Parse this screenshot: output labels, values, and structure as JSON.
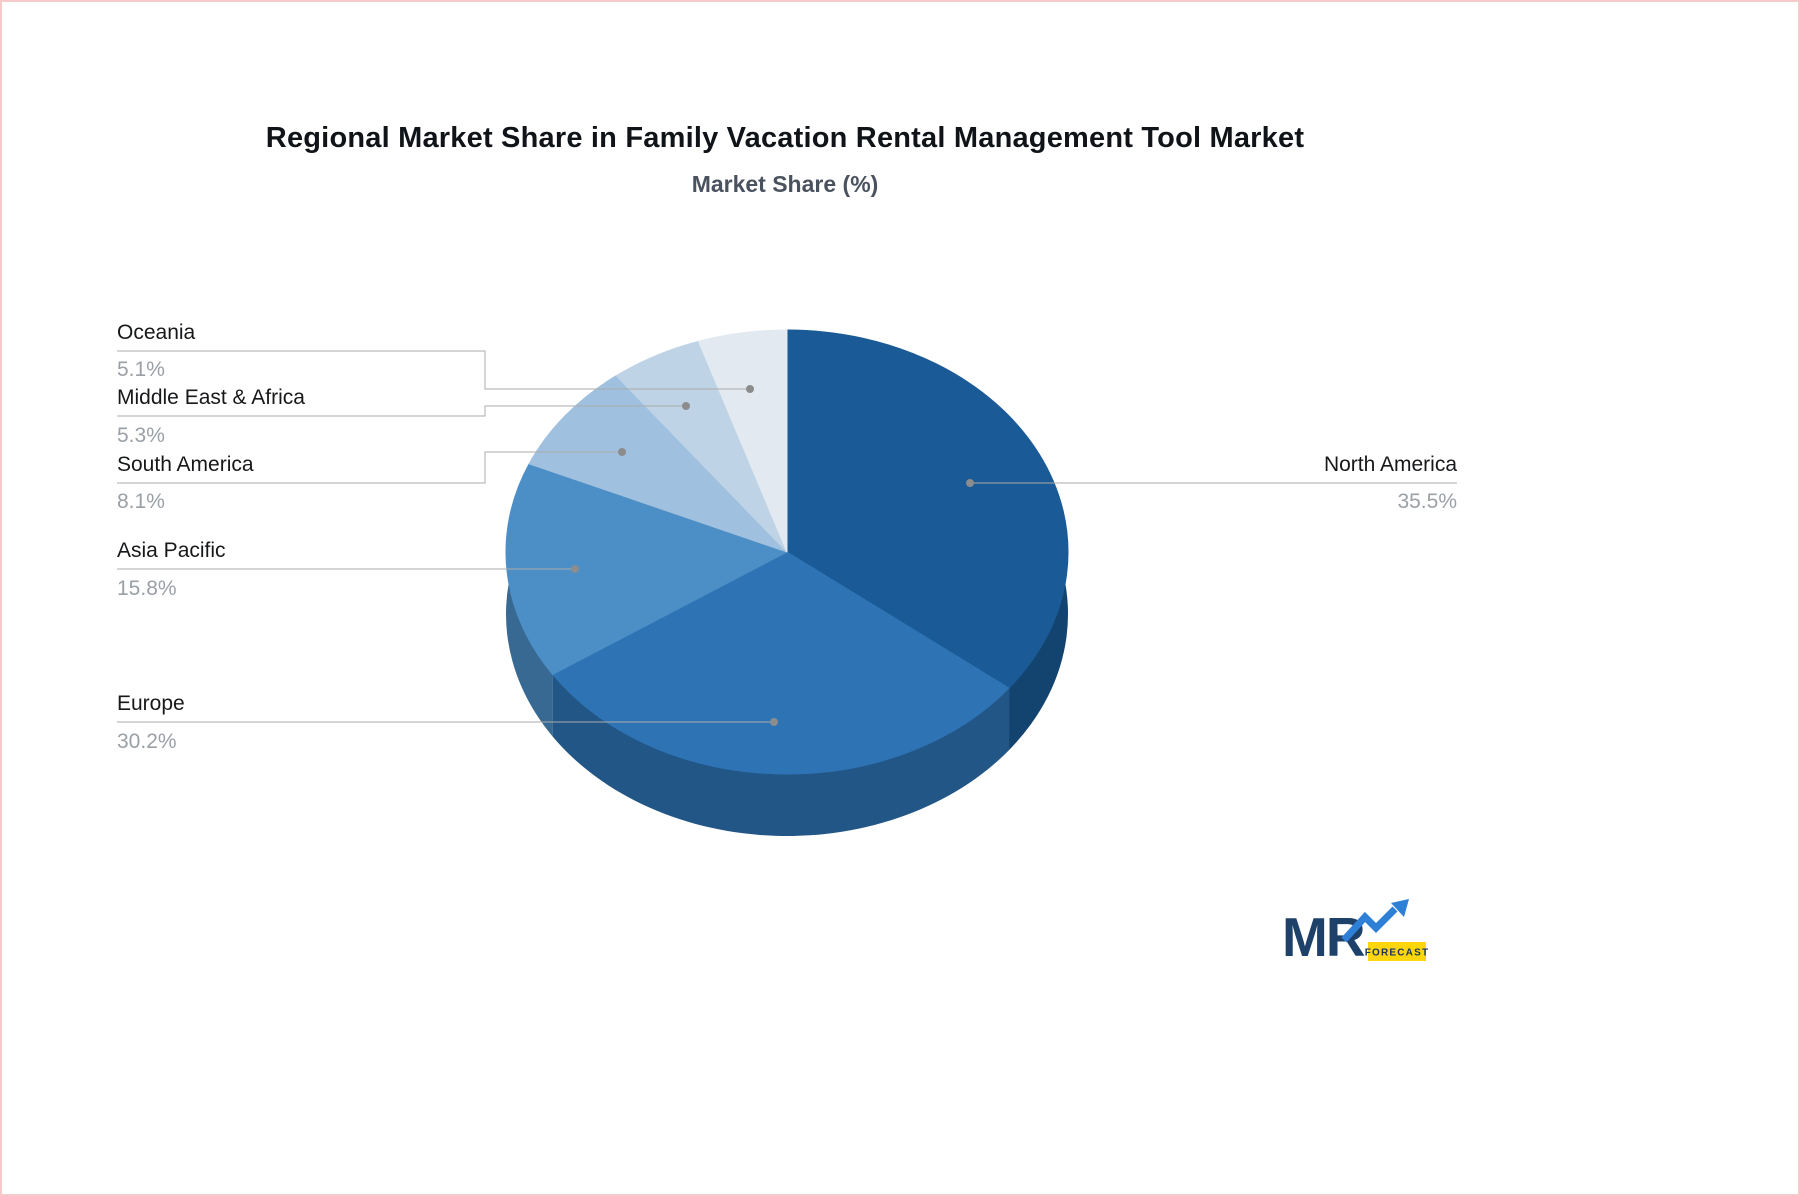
{
  "header": {
    "title": "Regional Market Share in Family Vacation Rental Management Tool Market",
    "subtitle": "Market Share (%)"
  },
  "chart_data": {
    "type": "pie",
    "title": "Regional Market Share in Family Vacation Rental Management Tool Market",
    "subtitle": "Market Share (%)",
    "unit": "%",
    "start_angle_deg": 0,
    "direction": "clockwise",
    "style": "3d-pie",
    "leader_color": "#ababab",
    "dot_color": "#8c8c8c",
    "series": [
      {
        "name": "North America",
        "value": 35.5,
        "label": "35.5%",
        "color": "#1a5a96"
      },
      {
        "name": "Europe",
        "value": 30.2,
        "label": "30.2%",
        "color": "#2e74b5"
      },
      {
        "name": "Asia Pacific",
        "value": 15.8,
        "label": "15.8%",
        "color": "#4c8ec6"
      },
      {
        "name": "South America",
        "value": 8.1,
        "label": "8.1%",
        "color": "#9fc0de"
      },
      {
        "name": "Middle East & Africa",
        "value": 5.3,
        "label": "5.3%",
        "color": "#bed3e6"
      },
      {
        "name": "Oceania",
        "value": 5.1,
        "label": "5.1%",
        "color": "#e2e9f0"
      }
    ]
  },
  "logo": {
    "mr": "MR",
    "forecast": "FORECAST",
    "colors": {
      "mr": "#1d4169",
      "arrow": "#2e7fd6",
      "box": "#ffd60a",
      "forecast": "#13365f"
    }
  }
}
